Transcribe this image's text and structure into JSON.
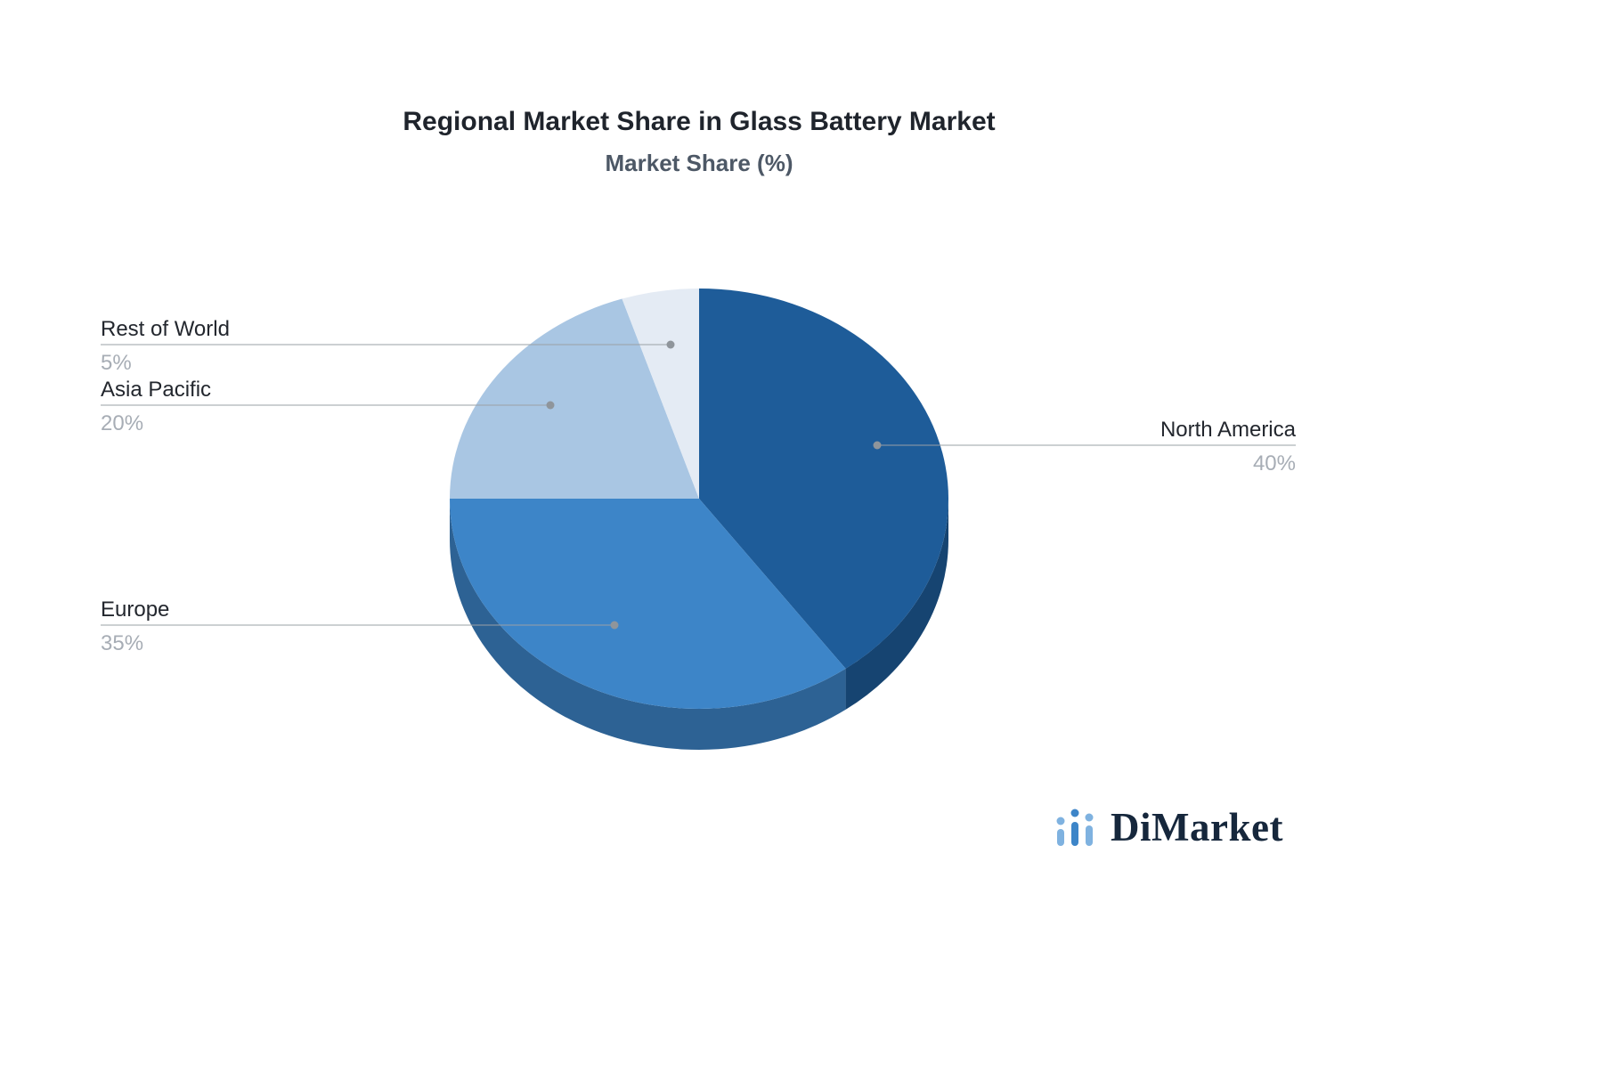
{
  "brand": {
    "name": "DiMarket",
    "icon": "bar-chart-icon",
    "accent_color": "#3d85c8",
    "text_color": "#16273c"
  },
  "chart_data": {
    "type": "pie",
    "style": "3d",
    "title": "Regional Market Share in Glass Battery Market",
    "subtitle": "Market Share (%)",
    "unit": "%",
    "start_angle_deg": -90,
    "direction": "clockwise",
    "legend_position": "callout-labels",
    "slices": [
      {
        "label": "North America",
        "value": 40,
        "display": "40%",
        "color": "#1e5c99"
      },
      {
        "label": "Europe",
        "value": 35,
        "display": "35%",
        "color": "#3d85c8"
      },
      {
        "label": "Asia Pacific",
        "value": 20,
        "display": "20%",
        "color": "#a9c6e3"
      },
      {
        "label": "Rest of World",
        "value": 5,
        "display": "5%",
        "color": "#e4ebf4"
      }
    ]
  }
}
